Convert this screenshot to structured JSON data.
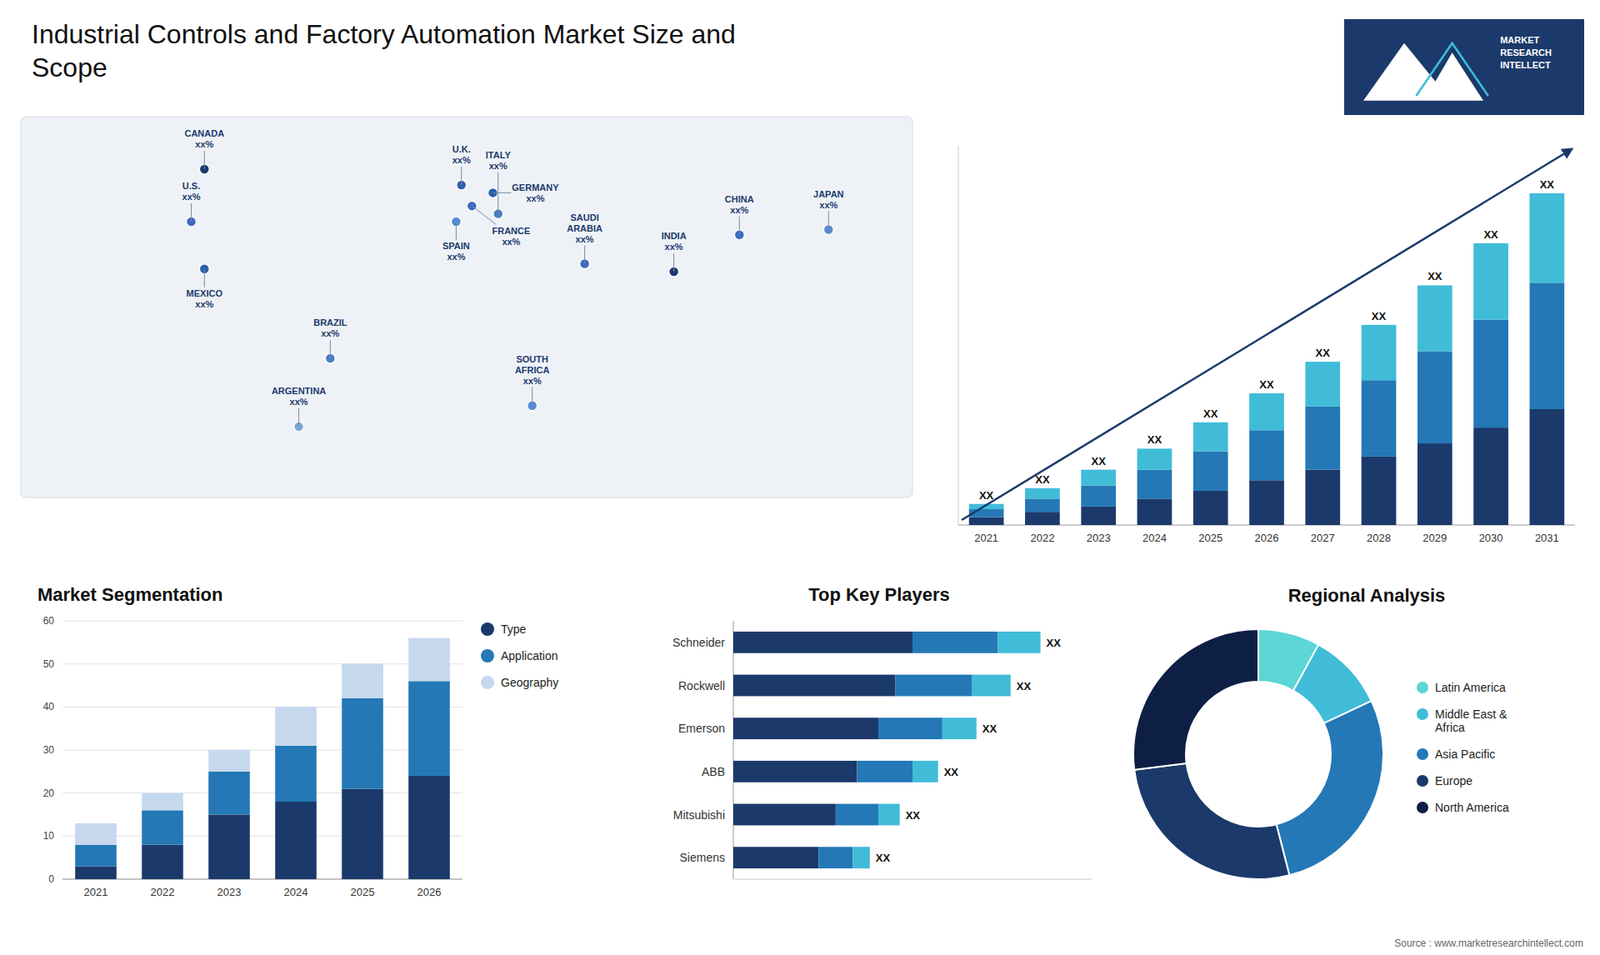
{
  "chart_data": [
    {
      "type": "map",
      "title": "Industrial Controls and Factory Automation Market Size and\nScope",
      "xlim": [
        -170,
        170
      ],
      "ylim": [
        -65,
        80
      ],
      "tick_labels": false,
      "labels": [
        "CANADA\nxx%",
        "U.S.\nxx%",
        "MEXICO\nxx%",
        "BRAZIL\nxx%",
        "ARGENTINA\nxx%",
        "U.K.\nxx%",
        "FRANCE\nxx%",
        "GERMANY\nxx%",
        "SPAIN\nxx%",
        "ITALY\nxx%",
        "SAUDI\nARABIA\nxx%",
        "SOUTH\nAFRICA\nxx%",
        "CHINA\nxx%",
        "INDIA\nxx%",
        "JAPAN\nxx%"
      ],
      "x": [
        -100,
        -105,
        -100,
        -52,
        -64,
        -2,
        2,
        10,
        -4,
        12,
        45,
        25,
        104,
        79,
        138
      ],
      "values": [
        60,
        40,
        22,
        -12,
        -38,
        54,
        46,
        51,
        40,
        43,
        24,
        -30,
        35,
        21,
        37
      ],
      "colors": [
        "#1b3a6b",
        "#3d6bbf",
        "#2b5faa",
        "#4a7ec4",
        "#7aaad4",
        "#3060aa",
        "#3d6bbf",
        "#2b5faa",
        "#5a8ad4",
        "#4a7ec4",
        "#3d6bbf",
        "#5a8ad4",
        "#3d6bbf",
        "#1b3a6b",
        "#5a8ad4"
      ],
      "annotations": [
        "MARKET\nRESEARCH\nINTELLECT",
        "Source : www.marketresearchintellect.com"
      ]
    },
    {
      "type": "bar",
      "stacked": true,
      "categories": [
        "2021",
        "2022",
        "2023",
        "2024",
        "2025",
        "2026",
        "2027",
        "2028",
        "2029",
        "2030",
        "2031"
      ],
      "series": [
        {
          "color": "#1b3a6b",
          "values": [
            3,
            5,
            7,
            10,
            13,
            17,
            21,
            26,
            31,
            37,
            44
          ]
        },
        {
          "color": "#2378b5",
          "values": [
            3,
            5,
            8,
            11,
            15,
            19,
            24,
            29,
            35,
            41,
            48
          ]
        },
        {
          "color": "#40bcd8",
          "values": [
            2,
            4,
            6,
            8,
            11,
            14,
            17,
            21,
            25,
            29,
            34
          ]
        }
      ],
      "ylim": [
        0,
        144
      ],
      "tick_labels": "x",
      "annotations": [
        "XX",
        "XX",
        "XX",
        "XX",
        "XX",
        "XX",
        "XX",
        "XX",
        "XX",
        "XX",
        "XX"
      ]
    },
    {
      "type": "bar",
      "stacked": true,
      "title": "Market Segmentation",
      "categories": [
        "2021",
        "2022",
        "2023",
        "2024",
        "2025",
        "2026"
      ],
      "series": [
        {
          "name": "Type",
          "color": "#1b3a6b",
          "values": [
            3,
            8,
            15,
            18,
            21,
            24
          ]
        },
        {
          "name": "Application",
          "color": "#2378b5",
          "values": [
            5,
            8,
            10,
            13,
            21,
            22
          ]
        },
        {
          "name": "Geography",
          "color": "#c5d8ee",
          "values": [
            5,
            4,
            5,
            9,
            8,
            10
          ]
        }
      ],
      "ylim": [
        0,
        60
      ],
      "yticks": [
        0,
        10,
        20,
        30,
        40,
        50,
        60
      ],
      "grid": true,
      "legend": "right"
    },
    {
      "type": "bar",
      "orientation": "horizontal",
      "stacked": true,
      "title": "Top Key Players",
      "categories": [
        "Schneider",
        "Rockwell",
        "Emerson",
        "ABB",
        "Mitsubishi",
        "Siemens"
      ],
      "series": [
        {
          "color": "#1b3a6b",
          "values": [
            42,
            38,
            34,
            29,
            24,
            20
          ]
        },
        {
          "color": "#2378b5",
          "values": [
            20,
            18,
            15,
            13,
            10,
            8
          ]
        },
        {
          "color": "#40bcd8",
          "values": [
            10,
            9,
            8,
            6,
            5,
            4
          ]
        }
      ],
      "xlim": [
        0,
        84
      ],
      "tick_labels": "y",
      "annotations": [
        "XX",
        "XX",
        "XX",
        "XX",
        "XX",
        "XX"
      ]
    },
    {
      "type": "donut",
      "title": "Regional Analysis",
      "categories": [
        "Latin America",
        "Middle East &\nAfrica",
        "Asia Pacific",
        "Europe",
        "North America"
      ],
      "values": [
        8,
        10,
        28,
        27,
        27
      ],
      "colors": [
        "#5cd6d6",
        "#40bcd8",
        "#2378b5",
        "#1b3a6b",
        "#0d1f45"
      ],
      "legend": "right"
    }
  ]
}
